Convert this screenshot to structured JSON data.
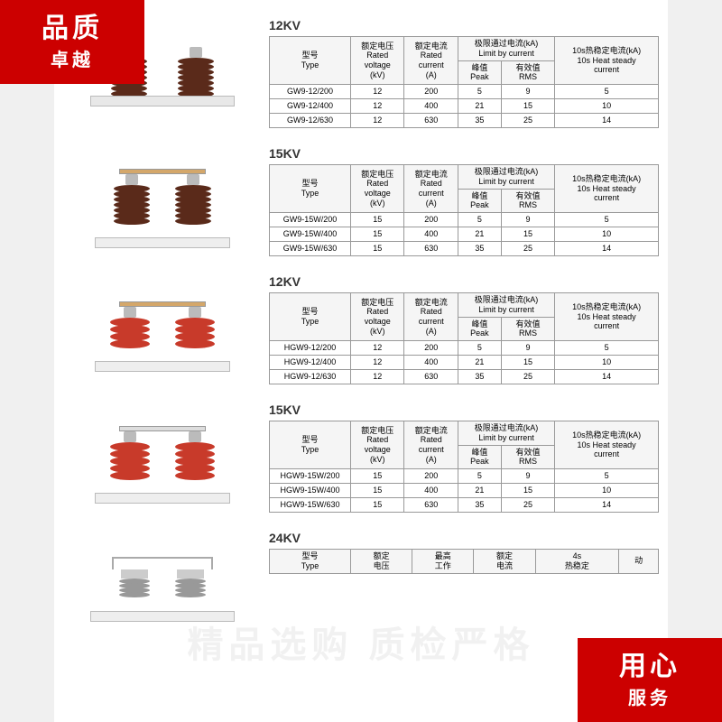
{
  "badges": {
    "tl_big": "品质",
    "tl_small": "卓越",
    "br_big": "用心",
    "br_small": "服务"
  },
  "watermark": "精品选购  质检严格",
  "headers": {
    "type": "型号\nType",
    "voltage": "额定电压\nRated\nvoltage\n(kV)",
    "current": "额定电流\nRated\ncurrent\n(A)",
    "limit": "极限通过电流(kA)\nLimit by current",
    "peak": "峰值\nPeak",
    "rms": "有效值\nRMS",
    "steady": "10s热稳定电流(kA)\n10s Heat steady\ncurrent"
  },
  "headers24": {
    "type": "型号\nType",
    "voltage": "额定\n电压",
    "work": "最高\n工作",
    "current": "额定\n电流",
    "s4": "4s\n热稳定",
    "dyn": "动"
  },
  "sections": [
    {
      "kv": "12KV",
      "img_style": "brown-pair",
      "rows": [
        {
          "type": "GW9-12/200",
          "v": "12",
          "a": "200",
          "peak": "5",
          "rms": "9",
          "steady": "5"
        },
        {
          "type": "GW9-12/400",
          "v": "12",
          "a": "400",
          "peak": "21",
          "rms": "15",
          "steady": "10"
        },
        {
          "type": "GW9-12/630",
          "v": "12",
          "a": "630",
          "peak": "35",
          "rms": "25",
          "steady": "14"
        }
      ]
    },
    {
      "kv": "15KV",
      "img_style": "brown-assembly",
      "rows": [
        {
          "type": "GW9-15W/200",
          "v": "15",
          "a": "200",
          "peak": "5",
          "rms": "9",
          "steady": "5"
        },
        {
          "type": "GW9-15W/400",
          "v": "15",
          "a": "400",
          "peak": "21",
          "rms": "15",
          "steady": "10"
        },
        {
          "type": "GW9-15W/630",
          "v": "15",
          "a": "630",
          "peak": "35",
          "rms": "25",
          "steady": "14"
        }
      ]
    },
    {
      "kv": "12KV",
      "img_style": "red-assembly",
      "rows": [
        {
          "type": "HGW9-12/200",
          "v": "12",
          "a": "200",
          "peak": "5",
          "rms": "9",
          "steady": "5"
        },
        {
          "type": "HGW9-12/400",
          "v": "12",
          "a": "400",
          "peak": "21",
          "rms": "15",
          "steady": "10"
        },
        {
          "type": "HGW9-12/630",
          "v": "12",
          "a": "630",
          "peak": "35",
          "rms": "25",
          "steady": "14"
        }
      ]
    },
    {
      "kv": "15KV",
      "img_style": "red-assembly-tall",
      "rows": [
        {
          "type": "HGW9-15W/200",
          "v": "15",
          "a": "200",
          "peak": "5",
          "rms": "9",
          "steady": "5"
        },
        {
          "type": "HGW9-15W/400",
          "v": "15",
          "a": "400",
          "peak": "21",
          "rms": "15",
          "steady": "10"
        },
        {
          "type": "HGW9-15W/630",
          "v": "15",
          "a": "630",
          "peak": "35",
          "rms": "25",
          "steady": "14"
        }
      ]
    },
    {
      "kv": "24KV",
      "img_style": "grey-assembly",
      "rows": []
    }
  ],
  "colors": {
    "brown": "#5a2a1a",
    "red": "#c83a2a",
    "grey": "#999999",
    "badge": "#cc0000",
    "border": "#999999"
  }
}
